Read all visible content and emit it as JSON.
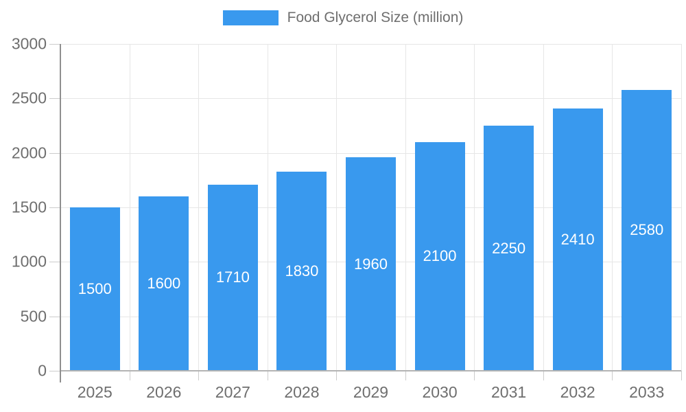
{
  "legend": {
    "label": "Food Glycerol Size (million)",
    "swatch_color": "#3999ee"
  },
  "colors": {
    "bar": "#3999ee",
    "bar_value_text": "#ffffff",
    "axis_text": "#6e6e6e",
    "gridline": "#e6e6e6",
    "tick": "#cccccc",
    "y_axis_line": "#8f8f8f",
    "x_axis_line": "#b3b3b3",
    "background": "#ffffff"
  },
  "chart_data": {
    "type": "bar",
    "title": "Food Glycerol Size (million)",
    "categories": [
      "2025",
      "2026",
      "2027",
      "2028",
      "2029",
      "2030",
      "2031",
      "2032",
      "2033"
    ],
    "values": [
      1500,
      1600,
      1710,
      1830,
      1960,
      2100,
      2250,
      2410,
      2580
    ],
    "xlabel": "",
    "ylabel": "",
    "ylim": [
      0,
      3000
    ],
    "y_ticks": [
      0,
      500,
      1000,
      1500,
      2000,
      2500,
      3000
    ],
    "grid": true,
    "legend_position": "top",
    "value_labels": "inside-center"
  }
}
